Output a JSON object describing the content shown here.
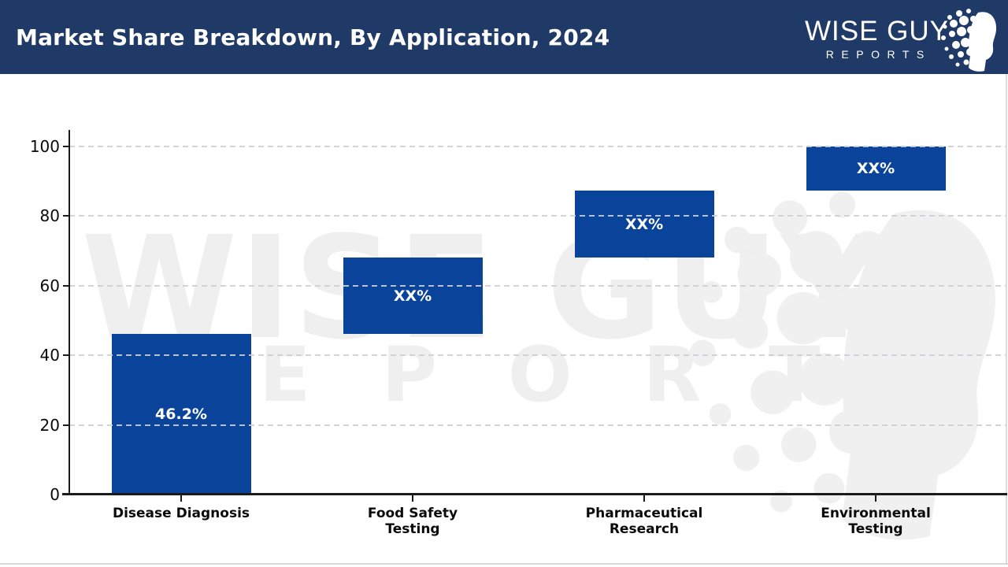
{
  "header": {
    "title": "Market Share Breakdown, By Application, 2024",
    "logo": {
      "line1": "WISE GUY",
      "line2": "REPORTS"
    }
  },
  "watermark": {
    "line1": "WISE GUY",
    "line2": "REPORTS"
  },
  "chart_data": {
    "type": "bar",
    "subtype": "waterfall",
    "title": "Market Share Breakdown, By Application, 2024",
    "categories": [
      "Disease Diagnosis",
      "Food Safety Testing",
      "Pharmaceutical Research",
      "Environmental Testing"
    ],
    "category_label_lines": [
      [
        "Disease Diagnosis"
      ],
      [
        "Food Safety",
        "Testing"
      ],
      [
        "Pharmaceutical",
        "Research"
      ],
      [
        "Environmental",
        "Testing"
      ]
    ],
    "segments": [
      {
        "category": "Disease Diagnosis",
        "start": 0,
        "end": 46.2,
        "label": "46.2%"
      },
      {
        "category": "Food Safety Testing",
        "start": 46.2,
        "end": 68,
        "label": "XX%"
      },
      {
        "category": "Pharmaceutical Research",
        "start": 68,
        "end": 87.3,
        "label": "XX%"
      },
      {
        "category": "Environmental Testing",
        "start": 87.3,
        "end": 100,
        "label": "XX%"
      }
    ],
    "xlabel": "",
    "ylabel": "",
    "ylim": [
      0,
      100
    ],
    "yticks": [
      0,
      20,
      40,
      60,
      80,
      100
    ],
    "grid": "dashed-horizontal",
    "legend": "none",
    "bar_color": "#0a439a",
    "bar_label_color": "#ffffff"
  },
  "colors": {
    "header_bg": "#1f3a66",
    "bar": "#0a439a",
    "grid": "#d9d9d9",
    "axis": "#1a1a1a",
    "watermark": "#efefef"
  }
}
